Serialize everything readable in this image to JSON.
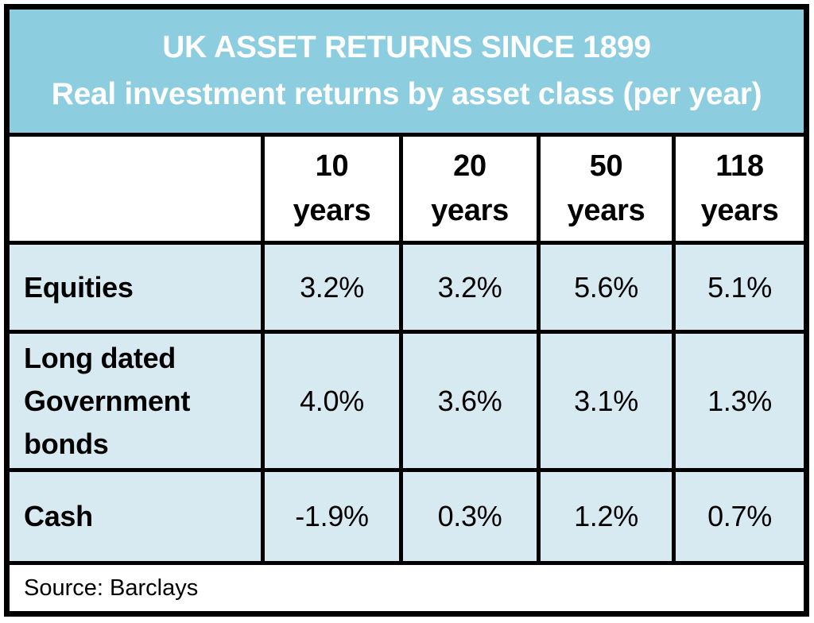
{
  "colors": {
    "banner_bg": "#8CCEDF",
    "banner_text": "#FFFFFF",
    "cell_bg": "#D7EAF2",
    "border": "#000000"
  },
  "banner": {
    "title": "UK ASSET RETURNS SINCE 1899",
    "subtitle": "Real investment returns by asset class (per year)"
  },
  "table": {
    "columns": [
      {
        "period": "10",
        "unit": "years"
      },
      {
        "period": "20",
        "unit": "years"
      },
      {
        "period": "50",
        "unit": "years"
      },
      {
        "period": "118",
        "unit": "years"
      }
    ],
    "rows": [
      {
        "label": "Equities",
        "values": [
          "3.2%",
          "3.2%",
          "5.6%",
          "5.1%"
        ]
      },
      {
        "label": "Long dated Government bonds",
        "values": [
          "4.0%",
          "3.6%",
          "3.1%",
          "1.3%"
        ]
      },
      {
        "label": "Cash",
        "values": [
          "-1.9%",
          "0.3%",
          "1.2%",
          "0.7%"
        ]
      }
    ]
  },
  "footer": {
    "source": "Source: Barclays"
  },
  "chart_data": {
    "type": "table",
    "title": "UK ASSET RETURNS SINCE 1899",
    "subtitle": "Real investment returns by asset class (per year)",
    "categories": [
      "10 years",
      "20 years",
      "50 years",
      "118 years"
    ],
    "series": [
      {
        "name": "Equities",
        "values": [
          3.2,
          3.2,
          5.6,
          5.1
        ]
      },
      {
        "name": "Long dated Government bonds",
        "values": [
          4.0,
          3.6,
          3.1,
          1.3
        ]
      },
      {
        "name": "Cash",
        "values": [
          -1.9,
          0.3,
          1.2,
          0.7
        ]
      }
    ],
    "unit": "% per year (real returns)",
    "source": "Source: Barclays"
  }
}
